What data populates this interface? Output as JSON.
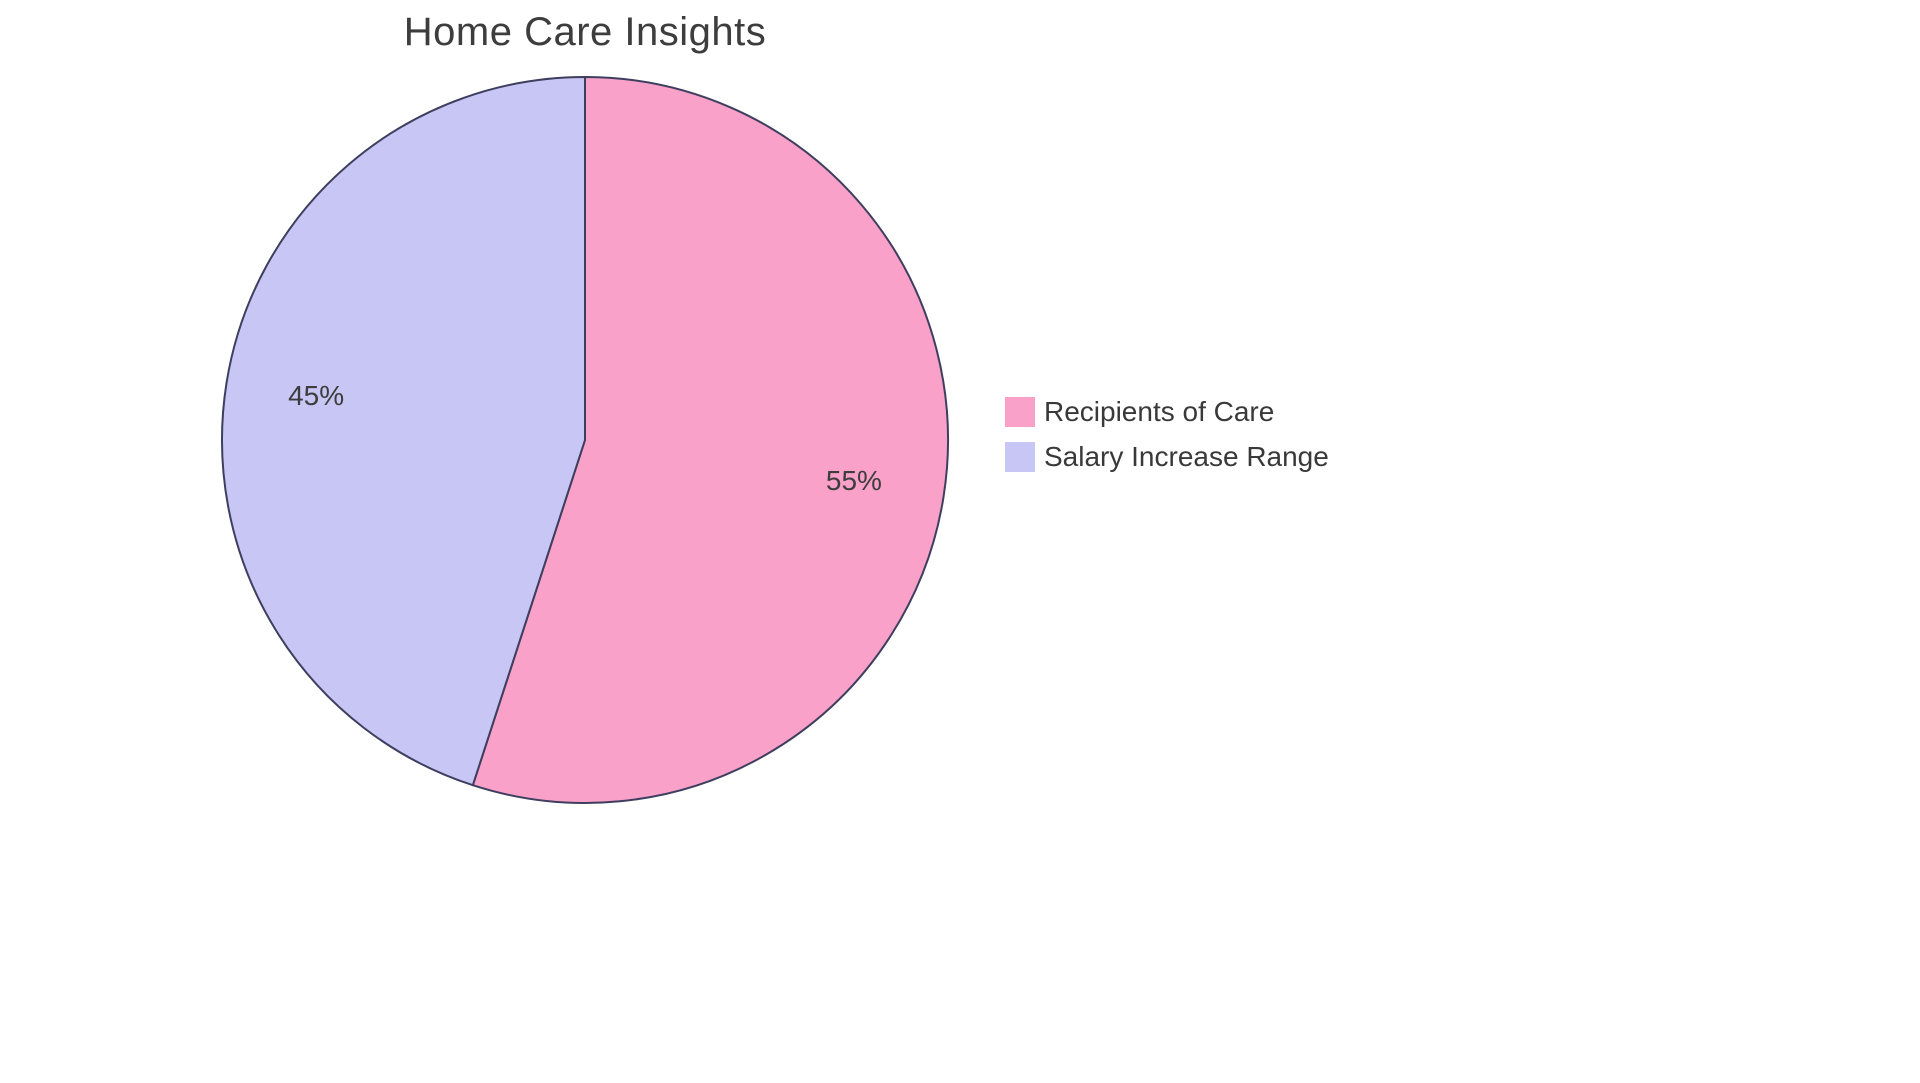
{
  "chart_data": {
    "type": "pie",
    "title": "Home Care Insights",
    "direction": "clockwise",
    "start_angle_deg": 0,
    "legend_position": "right",
    "stroke_color": "#3e3e5e",
    "label_color": "#3d3d3d",
    "slices": [
      {
        "id": "recipients-of-care",
        "label": "Recipients of Care",
        "value": 55,
        "pct_label": "55%",
        "color": "#f9a1c9"
      },
      {
        "id": "salary-increase-range",
        "label": "Salary Increase Range",
        "value": 45,
        "pct_label": "45%",
        "color": "#c8c6f5"
      }
    ]
  }
}
